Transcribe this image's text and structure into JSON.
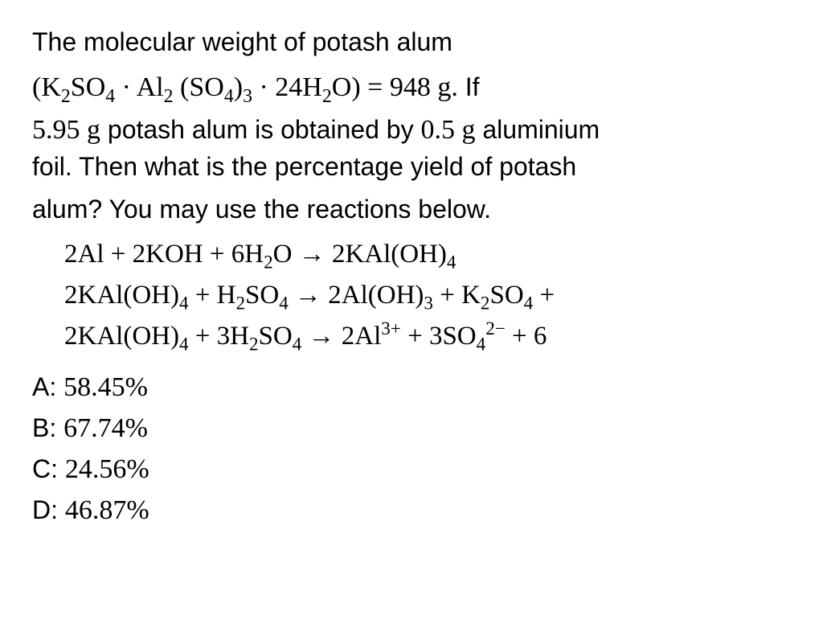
{
  "question": {
    "line1": "The molecular weight of potash alum",
    "formula_prefix": "(K",
    "formula_k_sub": "2",
    "formula_so4_1": "SO",
    "formula_so4_1_sub": "4",
    "formula_dot1": " · Al",
    "formula_al_sub": "2",
    "formula_paren_open": " (SO",
    "formula_so4_2_sub": "4",
    "formula_paren_close": ")",
    "formula_3_sub": "3",
    "formula_dot2": " · 24H",
    "formula_h2_sub": "2",
    "formula_end": "O) = 948 g.",
    "if_text": " If",
    "line3_mass": "5.95 g",
    "line3_text1": " potash alum is obtained by ",
    "line3_mass2": "0.5 g",
    "line3_text2": " aluminium",
    "line4": "foil. Then what is the percentage yield of potash",
    "line5": "alum? You may use the reactions below."
  },
  "equations": {
    "eq1": {
      "lhs_coef1": "2Al + 2KOH + 6H",
      "h2_sub": "2",
      "lhs_end": "O → 2KAl(OH)",
      "oh4_sub": "4"
    },
    "eq2": {
      "lhs": "2KAl(OH)",
      "oh4_sub": "4",
      "plus_h2so4": " + H",
      "h2_sub": "2",
      "so4": "SO",
      "so4_sub": "4",
      "arrow": " → 2Al(OH)",
      "oh3_sub": "3",
      "plus_k2so4": " + K",
      "k2_sub": "2",
      "so4_2": "SO",
      "so4_2_sub": "4",
      "trail": " +"
    },
    "eq3": {
      "lhs": "2KAl(OH)",
      "oh4_sub": "4",
      "plus": " + 3H",
      "h2_sub": "2",
      "so4": "SO",
      "so4_sub": "4",
      "arrow": " → 2Al",
      "al_sup": "3+",
      "plus2": " + 3SO",
      "so4_2_sub": "4",
      "so4_sup": "2−",
      "trail": " + 6"
    }
  },
  "options": {
    "a": {
      "label": "A: ",
      "value": "58.45%"
    },
    "b": {
      "label": "B: ",
      "value": "67.74%"
    },
    "c": {
      "label": "C: ",
      "value": "24.56%"
    },
    "d": {
      "label": "D: ",
      "value": "46.87%"
    }
  },
  "styling": {
    "background_color": "#ffffff",
    "text_color": "#000000",
    "question_fontsize": 32,
    "formula_fontsize": 34,
    "equation_fontsize": 33,
    "option_fontsize": 32,
    "font_family_sans": "Helvetica, Arial, sans-serif",
    "font_family_serif": "Georgia, Times New Roman, serif"
  }
}
